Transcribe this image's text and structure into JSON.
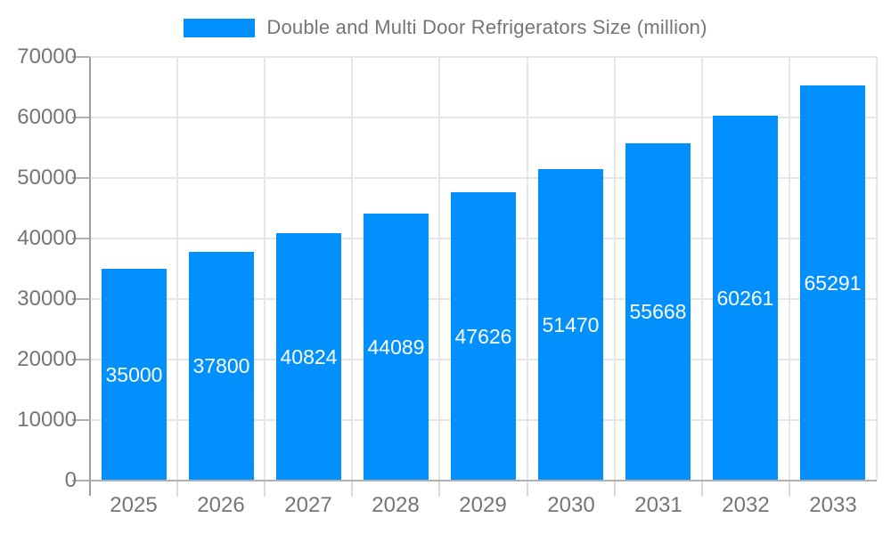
{
  "chart_data": {
    "type": "bar",
    "title": "Double and Multi Door Refrigerators Size (million)",
    "categories": [
      "2025",
      "2026",
      "2027",
      "2028",
      "2029",
      "2030",
      "2031",
      "2032",
      "2033"
    ],
    "series": [
      {
        "name": "Double and Multi Door Refrigerators Size (million)",
        "values": [
          35000,
          37800,
          40824,
          44089,
          47626,
          51470,
          55668,
          60261,
          65291
        ]
      }
    ],
    "value_labels": [
      "35000",
      "37800",
      "40824",
      "44089",
      "47626",
      "51470",
      "55668",
      "60261",
      "65291"
    ],
    "value_labels_position": "inside-center",
    "xlabel": "",
    "ylabel": "",
    "ylim": [
      0,
      70000
    ],
    "yticks": [
      0,
      10000,
      20000,
      30000,
      40000,
      50000,
      60000,
      70000
    ],
    "grid": true,
    "legend_position": "top",
    "colors": {
      "bar": "#0190fe",
      "axis_text": "#757575",
      "gridline": "#e6e6e6",
      "axis_line": "#9e9e9e",
      "value_label_text": "#ffffff"
    }
  }
}
